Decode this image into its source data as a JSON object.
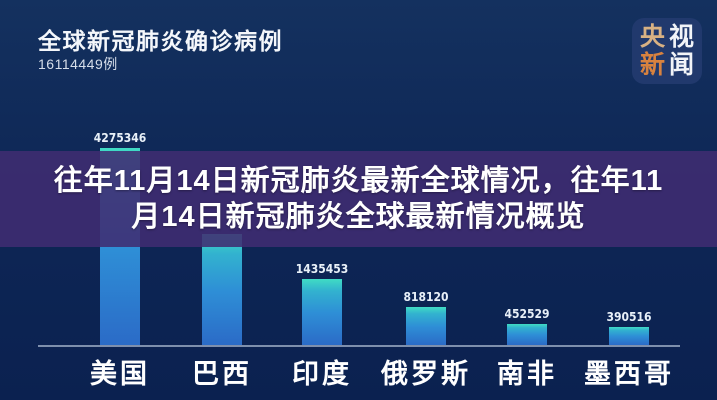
{
  "header": {
    "title": "全球新冠肺炎确诊病例",
    "subtitle": "16114449例"
  },
  "logo": {
    "name": "央视新闻",
    "chars": [
      {
        "text": "央",
        "color": "#d8b183"
      },
      {
        "text": "视",
        "color": "#f2f4f8"
      },
      {
        "text": "新",
        "color": "#d8823f"
      },
      {
        "text": "闻",
        "color": "#f2f4f8"
      }
    ],
    "background": "#21396d"
  },
  "banner": {
    "line1": "往年11月14日新冠肺炎最新全球情况，往年11",
    "line2": "月14日新冠肺炎全球最新情况概览",
    "background": "#402c72",
    "text_color": "#ffffff"
  },
  "chart_data": {
    "type": "bar",
    "title": "全球新冠肺炎确诊病例",
    "subtitle_total": "16114449例",
    "xlabel": "",
    "ylabel": "",
    "categories": [
      "美国",
      "巴西",
      "印度",
      "俄罗斯",
      "南非",
      "墨西哥"
    ],
    "keys": [
      "usa",
      "brazil",
      "india",
      "russia",
      "south-africa",
      "mexico"
    ],
    "values": [
      4275346,
      2410000,
      1435453,
      818120,
      452529,
      390516
    ],
    "value_labels": [
      "4275346",
      "",
      "1435453",
      "818120",
      "452529",
      "390516"
    ],
    "ylim": [
      0,
      4500000
    ],
    "grid": false,
    "legend": false,
    "bar_gradient_top": "#40dcc4",
    "bar_gradient_mid": "#2e8ed6",
    "bar_gradient_bottom": "#2b6bc7",
    "axis_color": "#93a2bd",
    "note": "巴西(Brazil) value label hidden behind overlay banner; its value is estimated from bar height"
  },
  "colors": {
    "background_top": "#14315f",
    "background_bottom": "#0b2150"
  }
}
